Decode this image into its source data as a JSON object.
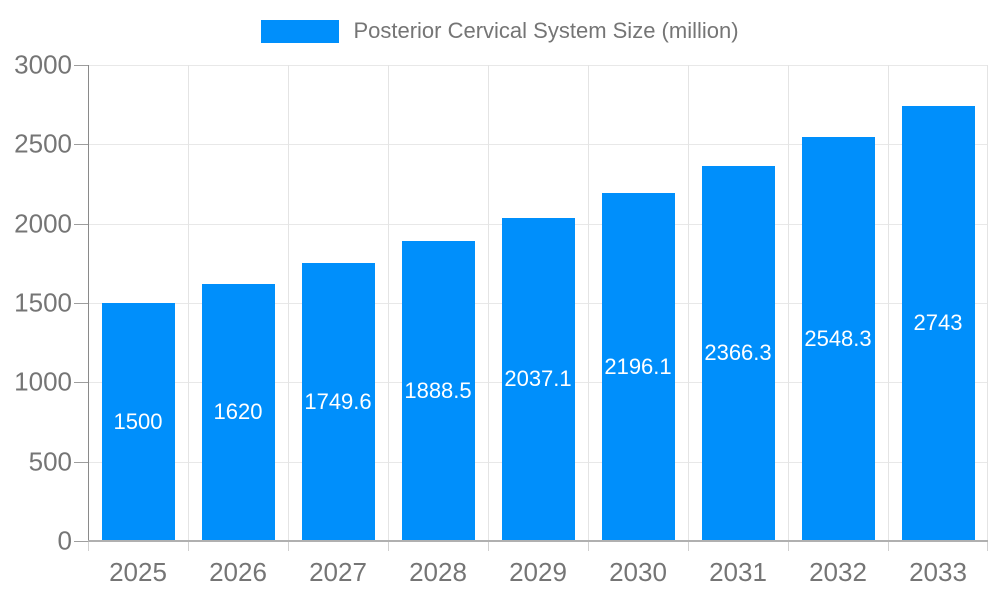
{
  "chart_data": {
    "type": "bar",
    "title": "",
    "legend": "Posterior Cervical System Size (million)",
    "legend_position": "top-center",
    "categories": [
      "2025",
      "2026",
      "2027",
      "2028",
      "2029",
      "2030",
      "2031",
      "2032",
      "2033"
    ],
    "values": [
      1500,
      1620,
      1749.6,
      1888.5,
      2037.1,
      2196.1,
      2366.3,
      2548.3,
      2743
    ],
    "xlabel": "",
    "ylabel": "",
    "ylim": [
      0,
      3000
    ],
    "yticks": [
      0,
      500,
      1000,
      1500,
      2000,
      2500,
      3000
    ],
    "grid": "horizontal and vertical, light gray",
    "bar_color": "#008FFB",
    "bar_label_color": "#ffffff",
    "axis_text_color": "#757575",
    "grid_color": "#e8e8e8",
    "axis_line_color": "#8a8a8a",
    "background_color": "#ffffff"
  }
}
